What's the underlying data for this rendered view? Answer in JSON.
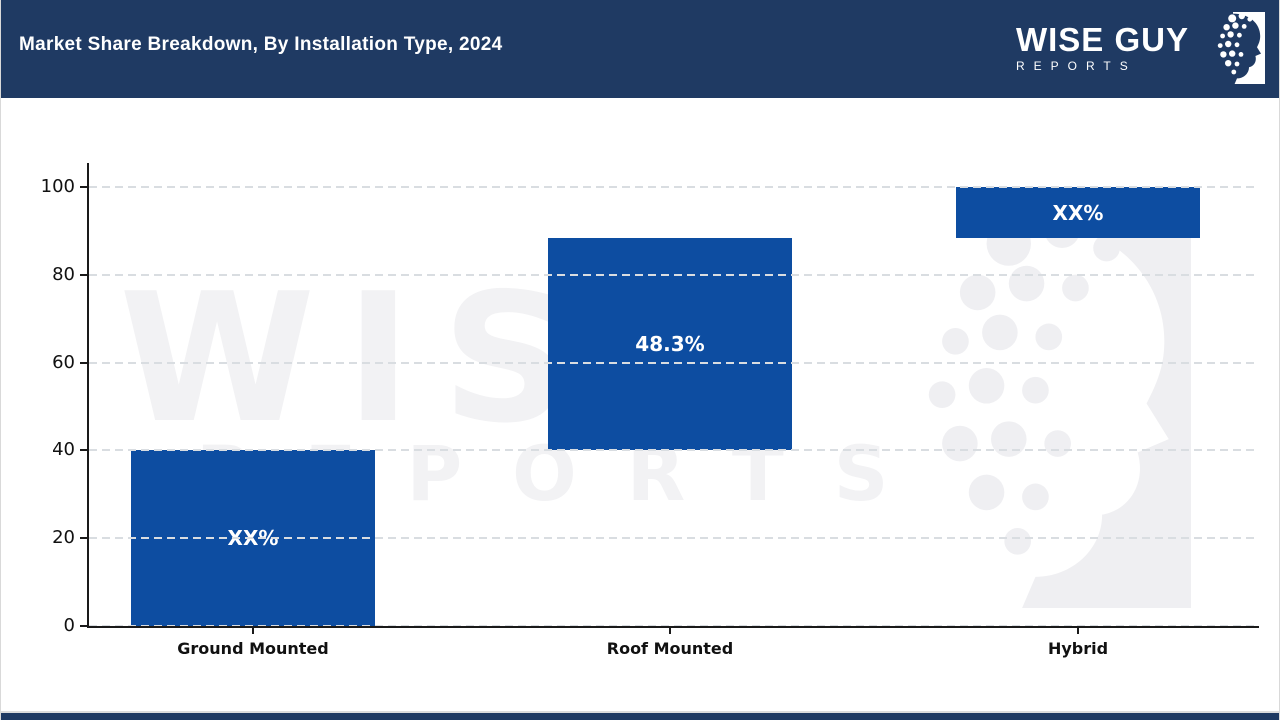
{
  "header": {
    "title": "Market Share Breakdown, By Installation Type, 2024",
    "logo": {
      "line1": "WISE GUY",
      "line2": "REPORTS"
    }
  },
  "watermark": {
    "line1": "WISE",
    "line2": "REPORTS"
  },
  "colors": {
    "header_bg": "#1f3a63",
    "bar_blue": "#0d4da1",
    "gridline": "#d9dde1",
    "axis": "#1a1a1a",
    "bar_label": "#ffffff",
    "watermark": "#f2f2f4"
  },
  "chart_data": {
    "type": "bar",
    "subtype": "waterfall",
    "title": "Market Share Breakdown, By Installation Type, 2024",
    "categories": [
      "Ground Mounted",
      "Roof Mounted",
      "Hybrid"
    ],
    "segments": [
      {
        "category": "Ground Mounted",
        "start": 0,
        "end": 40,
        "label": "XX%"
      },
      {
        "category": "Roof Mounted",
        "start": 40,
        "end": 88.3,
        "label": "48.3%"
      },
      {
        "category": "Hybrid",
        "start": 88.3,
        "end": 100,
        "label": "XX%"
      }
    ],
    "yticks": [
      0,
      20,
      40,
      60,
      80,
      100
    ],
    "ylim": [
      0,
      105
    ],
    "xlabel": "",
    "ylabel": "",
    "grid": "horizontal-dashed-over-bars",
    "legend": "none",
    "bar_color": "#0d4da1"
  }
}
